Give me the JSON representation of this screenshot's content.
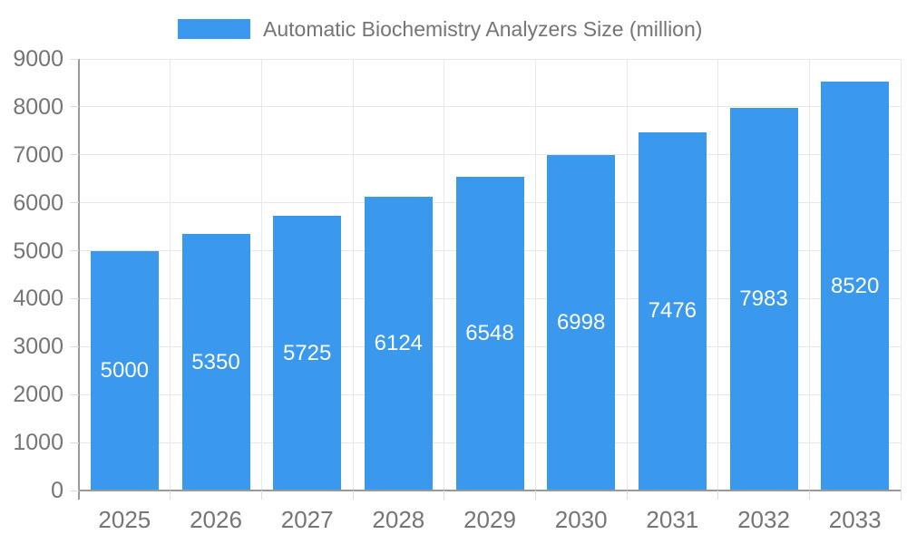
{
  "chart_data": {
    "type": "bar",
    "title": "Automatic Biochemistry Analyzers Size (million)",
    "categories": [
      "2025",
      "2026",
      "2027",
      "2028",
      "2029",
      "2030",
      "2031",
      "2032",
      "2033"
    ],
    "values": [
      5000,
      5350,
      5725,
      6124,
      6548,
      6998,
      7476,
      7983,
      8520
    ],
    "xlabel": "",
    "ylabel": "",
    "ylim": [
      0,
      9000
    ],
    "y_tick_step": 1000,
    "y_tick_labels": [
      "0",
      "1000",
      "2000",
      "3000",
      "4000",
      "5000",
      "6000",
      "7000",
      "8000",
      "9000"
    ],
    "grid": true,
    "legend_position": "top",
    "colors": {
      "bar": "#3B99ED",
      "grid": "#E8E8E8",
      "tick": "#DDDDDD",
      "axis": "#999999",
      "text": "#757575",
      "bar_label": "#FFFFFF",
      "background": "#FFFFFF"
    }
  }
}
